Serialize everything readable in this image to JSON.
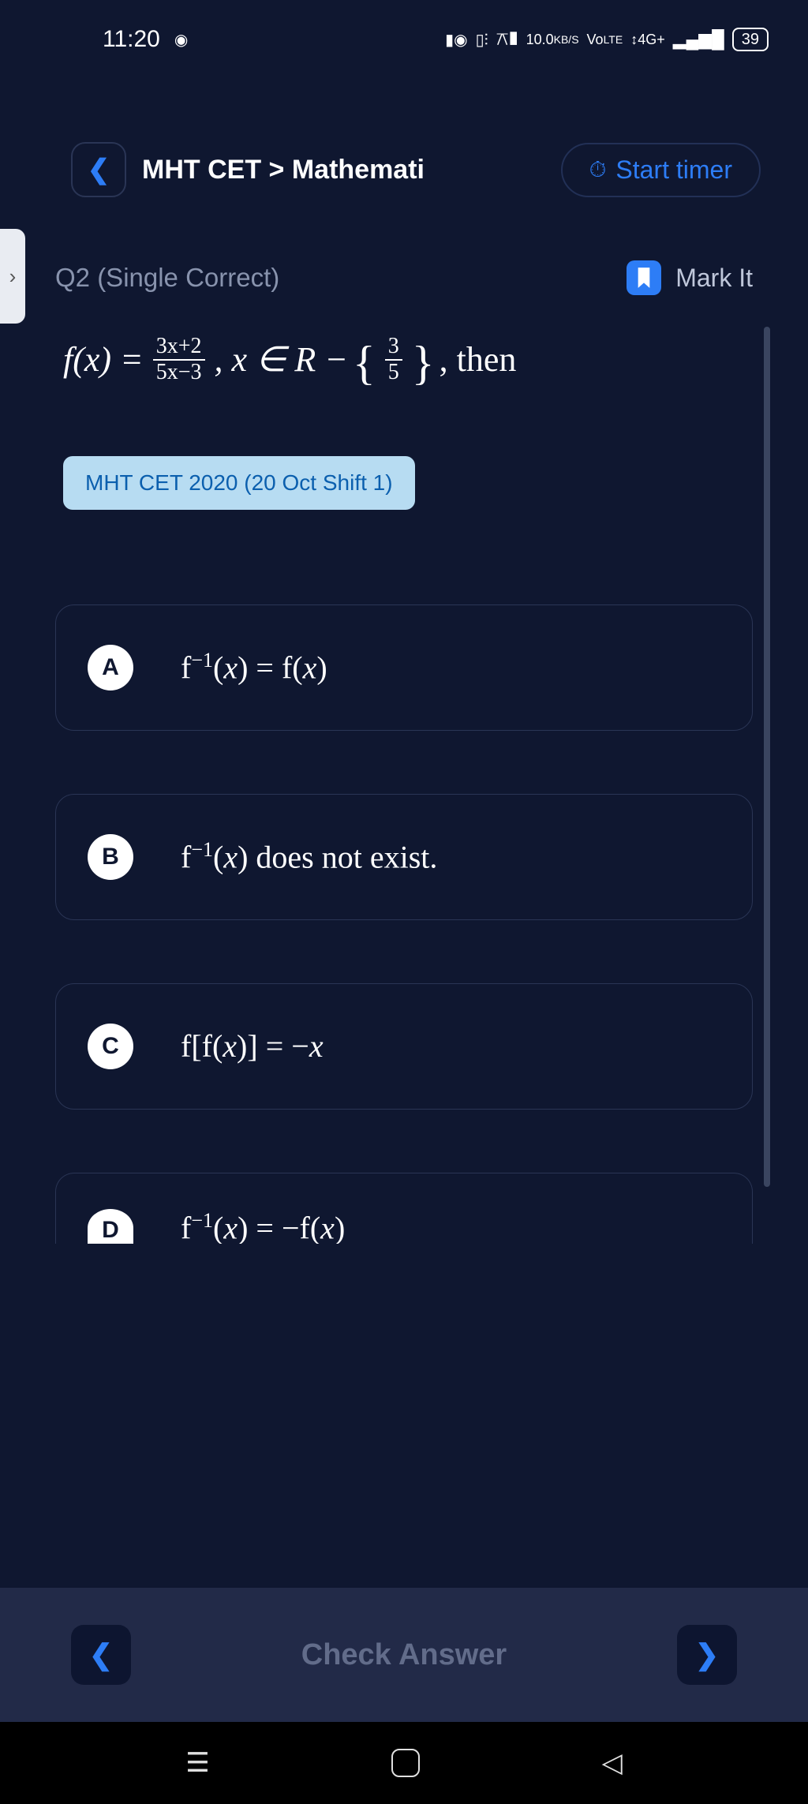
{
  "statusbar": {
    "time": "11:20",
    "data_rate": "10.0",
    "data_unit": "KB/S",
    "net1": "Vo",
    "net2": "LTE",
    "net3": "4G+",
    "battery": "39"
  },
  "header": {
    "breadcrumb": "MHT CET > Mathemati",
    "timer_label": "Start timer"
  },
  "question": {
    "label": "Q2 (Single Correct)",
    "mark_label": "Mark It",
    "eq_fx": "f(x) =",
    "eq_num": "3x+2",
    "eq_den": "5x−3",
    "eq_mid": ", x ∈ R −",
    "eq_set_num": "3",
    "eq_set_den": "5",
    "eq_tail": ", then",
    "source_chip": "MHT CET 2020 (20 Oct Shift 1)"
  },
  "options": {
    "A": {
      "letter": "A",
      "html": "f<sup>−1</sup>(<i>x</i>) = f(<i>x</i>)"
    },
    "B": {
      "letter": "B",
      "html": "f<sup>−1</sup>(<i>x</i>) <span class='rm'>does not exist.</span>"
    },
    "C": {
      "letter": "C",
      "html": "f[f(<i>x</i>)] = −<i>x</i>"
    },
    "D": {
      "letter": "D",
      "html": "f<sup>−1</sup>(<i>x</i>) = −f(<i>x</i>)"
    }
  },
  "bottom": {
    "check": "Check Answer"
  },
  "colors": {
    "bg": "#0f1730",
    "accent": "#2d7df6",
    "chip_bg": "#b7dcf2",
    "chip_fg": "#0b5fae",
    "muted": "#8893ad",
    "border": "#2a3555",
    "bottom_bg": "#222a48"
  }
}
